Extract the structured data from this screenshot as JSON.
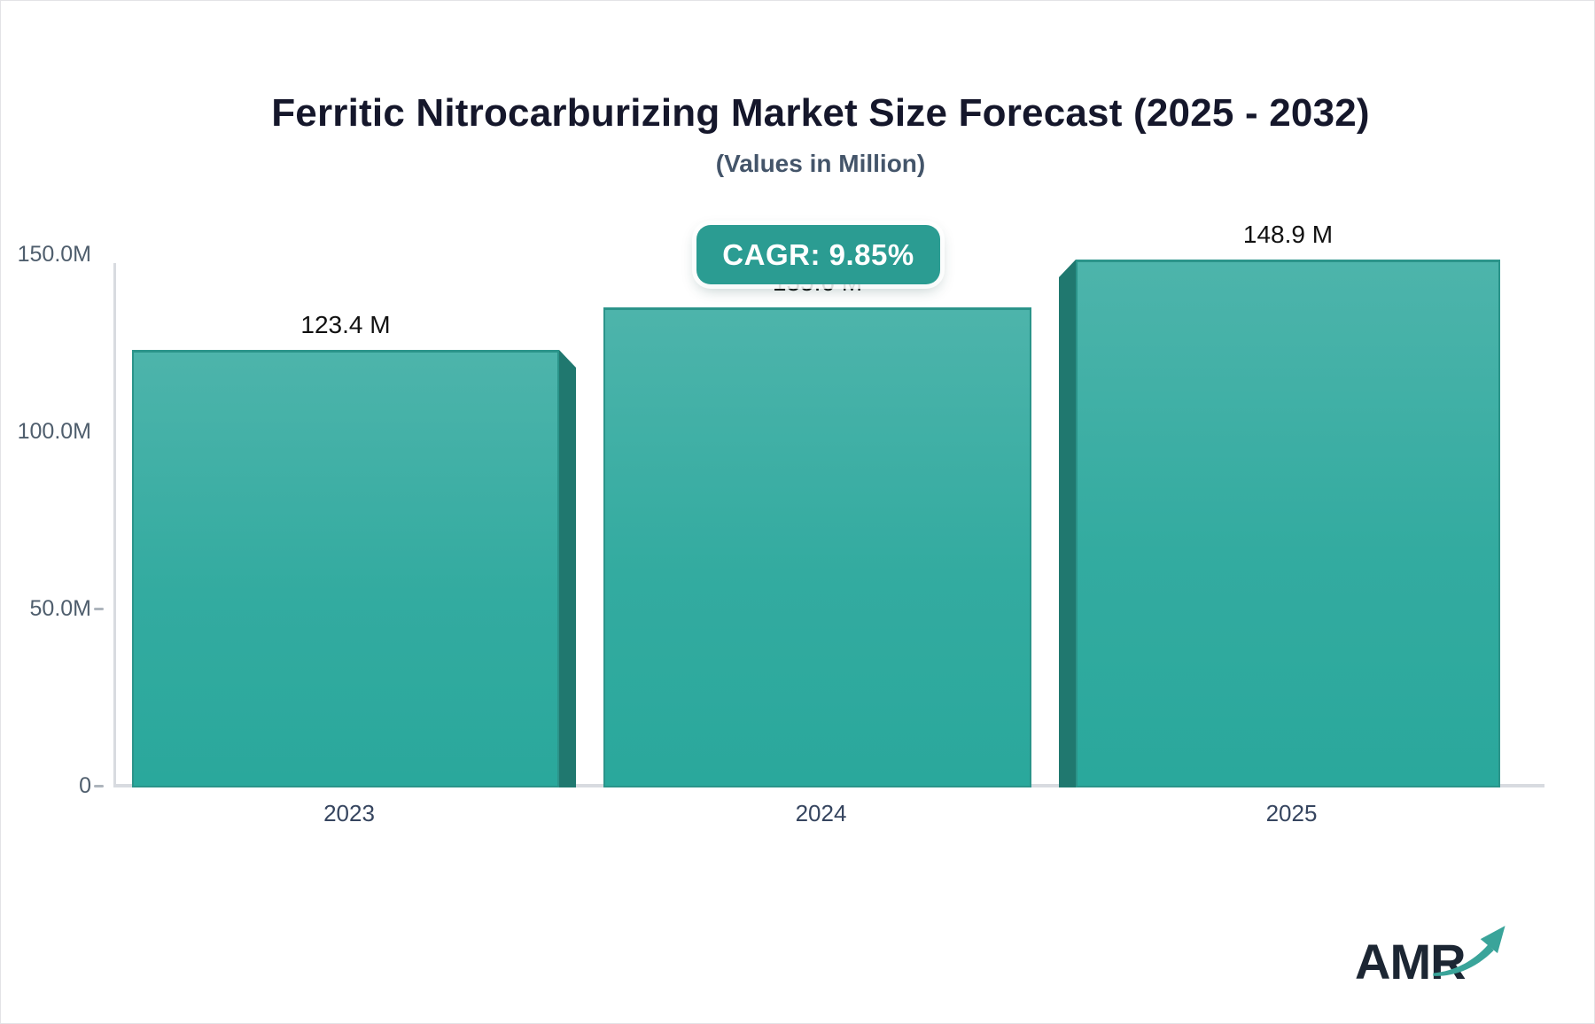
{
  "header": {
    "title": "Ferritic Nitrocarburizing Market Size Forecast (2025 - 2032)",
    "subtitle": "(Values in Million)"
  },
  "cagr_badge": {
    "label": "CAGR: 9.85%"
  },
  "chart_data": {
    "type": "bar",
    "title": "Ferritic Nitrocarburizing Market Size Forecast (2025 - 2032)",
    "subtitle": "(Values in Million)",
    "unit": "Million",
    "cagr": "9.85%",
    "categories": [
      "2023",
      "2024",
      "2025"
    ],
    "values": [
      123.4,
      135.6,
      148.9
    ],
    "value_labels": [
      "123.4 M",
      "135.6 M",
      "148.9 M"
    ],
    "xlabel": "",
    "ylabel": "",
    "ylim": [
      0,
      150
    ],
    "grid": false,
    "legend": false,
    "y_ticks": [
      {
        "value": 0,
        "label": "0",
        "dash": true
      },
      {
        "value": 50,
        "label": "50.0M",
        "dash": true
      },
      {
        "value": 100,
        "label": "100.0M",
        "dash": false
      },
      {
        "value": 150,
        "label": "150.0M",
        "dash": false
      }
    ]
  },
  "logo": {
    "text": "AMR",
    "icon": "growth-arrow"
  },
  "colors": {
    "bar_top": "#4db4ab",
    "bar_bottom": "#2aa89c",
    "bar_edge": "#20786f",
    "bar_border": "#2b948a",
    "badge_bg": "#2b9c92",
    "badge_text": "#ffffff",
    "axis_line": "#d8dbe0",
    "title": "#15172b",
    "subtitle": "#44556a",
    "axis_label": "#4f5e6d",
    "year_label": "#36455f",
    "value_label": "#111111",
    "logo_text": "#1c2633",
    "logo_arrow": "#3aa49a"
  }
}
